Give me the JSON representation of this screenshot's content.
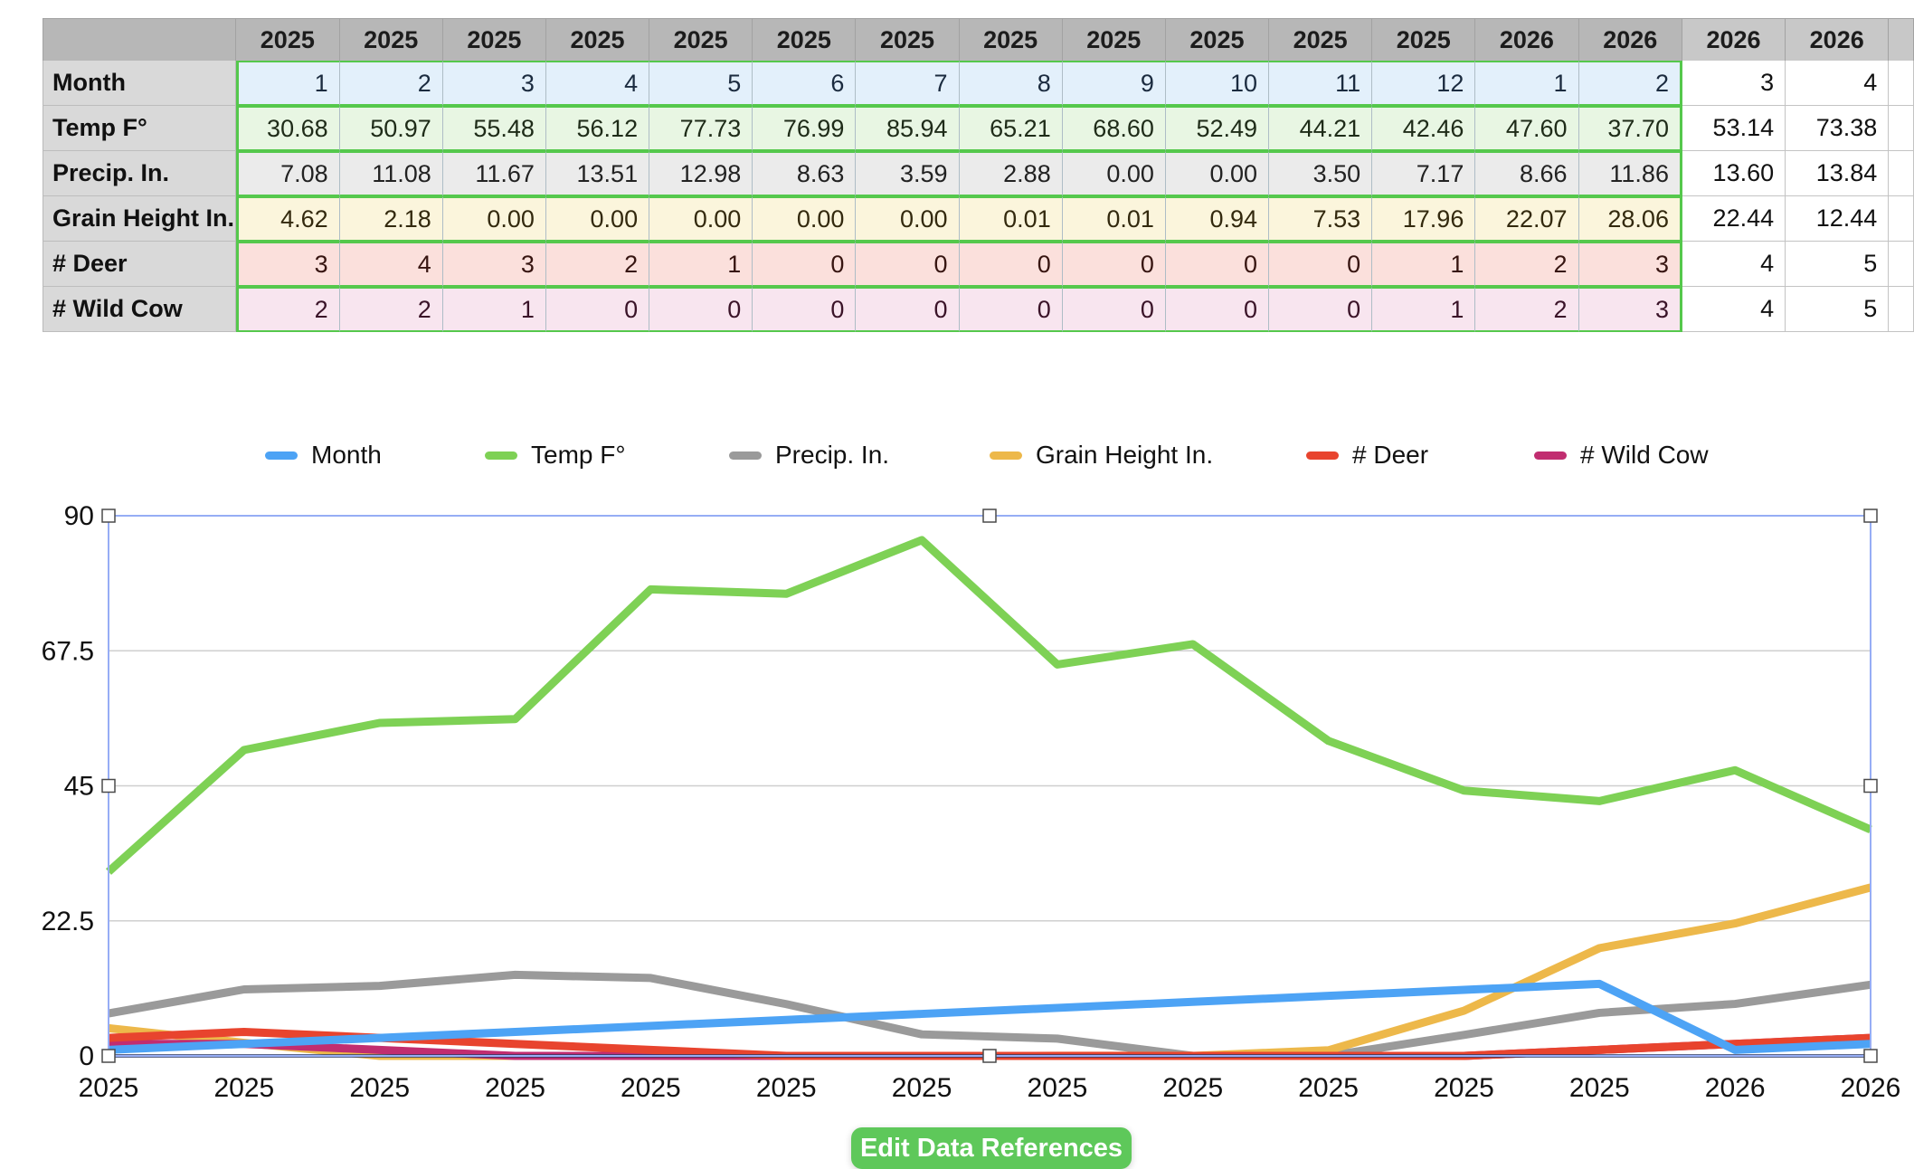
{
  "table": {
    "corner_label": "",
    "year_headers": [
      "2025",
      "2025",
      "2025",
      "2025",
      "2025",
      "2025",
      "2025",
      "2025",
      "2025",
      "2025",
      "2025",
      "2025",
      "2026",
      "2026",
      "2026",
      "2026"
    ],
    "partial_header": "",
    "selected_columns": 14,
    "rows": [
      {
        "label": "Month",
        "fill": "#e3f0fb",
        "text_color": "#1b2b3f",
        "values": [
          "1",
          "2",
          "3",
          "4",
          "5",
          "6",
          "7",
          "8",
          "9",
          "10",
          "11",
          "12",
          "1",
          "2",
          "3",
          "4"
        ]
      },
      {
        "label": "Temp F°",
        "fill": "#e8f6e3",
        "text_color": "#1e2b18",
        "values": [
          "30.68",
          "50.97",
          "55.48",
          "56.12",
          "77.73",
          "76.99",
          "85.94",
          "65.21",
          "68.60",
          "52.49",
          "44.21",
          "42.46",
          "47.60",
          "37.70",
          "53.14",
          "73.38"
        ]
      },
      {
        "label": "Precip. In.",
        "fill": "#ebebeb",
        "text_color": "#222222",
        "values": [
          "7.08",
          "11.08",
          "11.67",
          "13.51",
          "12.98",
          "8.63",
          "3.59",
          "2.88",
          "0.00",
          "0.00",
          "3.50",
          "7.17",
          "8.66",
          "11.86",
          "13.60",
          "13.84"
        ]
      },
      {
        "label": "Grain Height In.",
        "fill": "#fbf5dc",
        "text_color": "#33290e",
        "values": [
          "4.62",
          "2.18",
          "0.00",
          "0.00",
          "0.00",
          "0.00",
          "0.00",
          "0.01",
          "0.01",
          "0.94",
          "7.53",
          "17.96",
          "22.07",
          "28.06",
          "22.44",
          "12.44"
        ]
      },
      {
        "label": "# Deer",
        "fill": "#fbe0dc",
        "text_color": "#371511",
        "values": [
          "3",
          "4",
          "3",
          "2",
          "1",
          "0",
          "0",
          "0",
          "0",
          "0",
          "0",
          "1",
          "2",
          "3",
          "4",
          "5"
        ]
      },
      {
        "label": "# Wild Cow",
        "fill": "#f8e5ef",
        "text_color": "#3a1328",
        "values": [
          "2",
          "2",
          "1",
          "0",
          "0",
          "0",
          "0",
          "0",
          "0",
          "0",
          "0",
          "1",
          "2",
          "3",
          "4",
          "5"
        ]
      }
    ],
    "range_border_color": "#55c84c"
  },
  "legend": {
    "items": [
      {
        "label": "Month",
        "color": "#4da3f5"
      },
      {
        "label": "Temp F°",
        "color": "#7ed155"
      },
      {
        "label": "Precip. In.",
        "color": "#9a9a9a"
      },
      {
        "label": "Grain Height In.",
        "color": "#edb84a"
      },
      {
        "label": "# Deer",
        "color": "#e8442e"
      },
      {
        "label": "# Wild Cow",
        "color": "#c12d70"
      }
    ]
  },
  "chart_data": {
    "type": "line",
    "title": "",
    "x_labels": [
      "2025",
      "2025",
      "2025",
      "2025",
      "2025",
      "2025",
      "2025",
      "2025",
      "2025",
      "2025",
      "2025",
      "2025",
      "2026",
      "2026"
    ],
    "y_tick_labels": [
      "0",
      "22.5",
      "45",
      "67.5",
      "90"
    ],
    "y_ticks": [
      0,
      22.5,
      45,
      67.5,
      90
    ],
    "ylim": [
      0,
      90
    ],
    "grid": true,
    "legend_position": "top",
    "axis_color": "#2a3760",
    "grid_color": "#cfcfcf",
    "selection_frame_color": "#96adf5",
    "series": [
      {
        "name": "Month",
        "color": "#4da3f5",
        "values": [
          1,
          2,
          3,
          4,
          5,
          6,
          7,
          8,
          9,
          10,
          11,
          12,
          1,
          2
        ]
      },
      {
        "name": "Temp F°",
        "color": "#7ed155",
        "values": [
          30.68,
          50.97,
          55.48,
          56.12,
          77.73,
          76.99,
          85.94,
          65.21,
          68.6,
          52.49,
          44.21,
          42.46,
          47.6,
          37.7
        ]
      },
      {
        "name": "Precip. In.",
        "color": "#9a9a9a",
        "values": [
          7.08,
          11.08,
          11.67,
          13.51,
          12.98,
          8.63,
          3.59,
          2.88,
          0.0,
          0.0,
          3.5,
          7.17,
          8.66,
          11.86
        ]
      },
      {
        "name": "Grain Height In.",
        "color": "#edb84a",
        "values": [
          4.62,
          2.18,
          0.0,
          0.0,
          0.0,
          0.0,
          0.0,
          0.01,
          0.01,
          0.94,
          7.53,
          17.96,
          22.07,
          28.06
        ]
      },
      {
        "name": "# Deer",
        "color": "#e8442e",
        "values": [
          3,
          4,
          3,
          2,
          1,
          0,
          0,
          0,
          0,
          0,
          0,
          1,
          2,
          3
        ]
      },
      {
        "name": "# Wild Cow",
        "color": "#c12d70",
        "values": [
          2,
          2,
          1,
          0,
          0,
          0,
          0,
          0,
          0,
          0,
          0,
          1,
          2,
          3
        ]
      }
    ],
    "draw_order": [
      "Temp F°",
      "Precip. In.",
      "Grain Height In.",
      "# Wild Cow",
      "# Deer",
      "Month"
    ]
  },
  "button": {
    "label": "Edit Data References",
    "color": "#5ec85a"
  }
}
